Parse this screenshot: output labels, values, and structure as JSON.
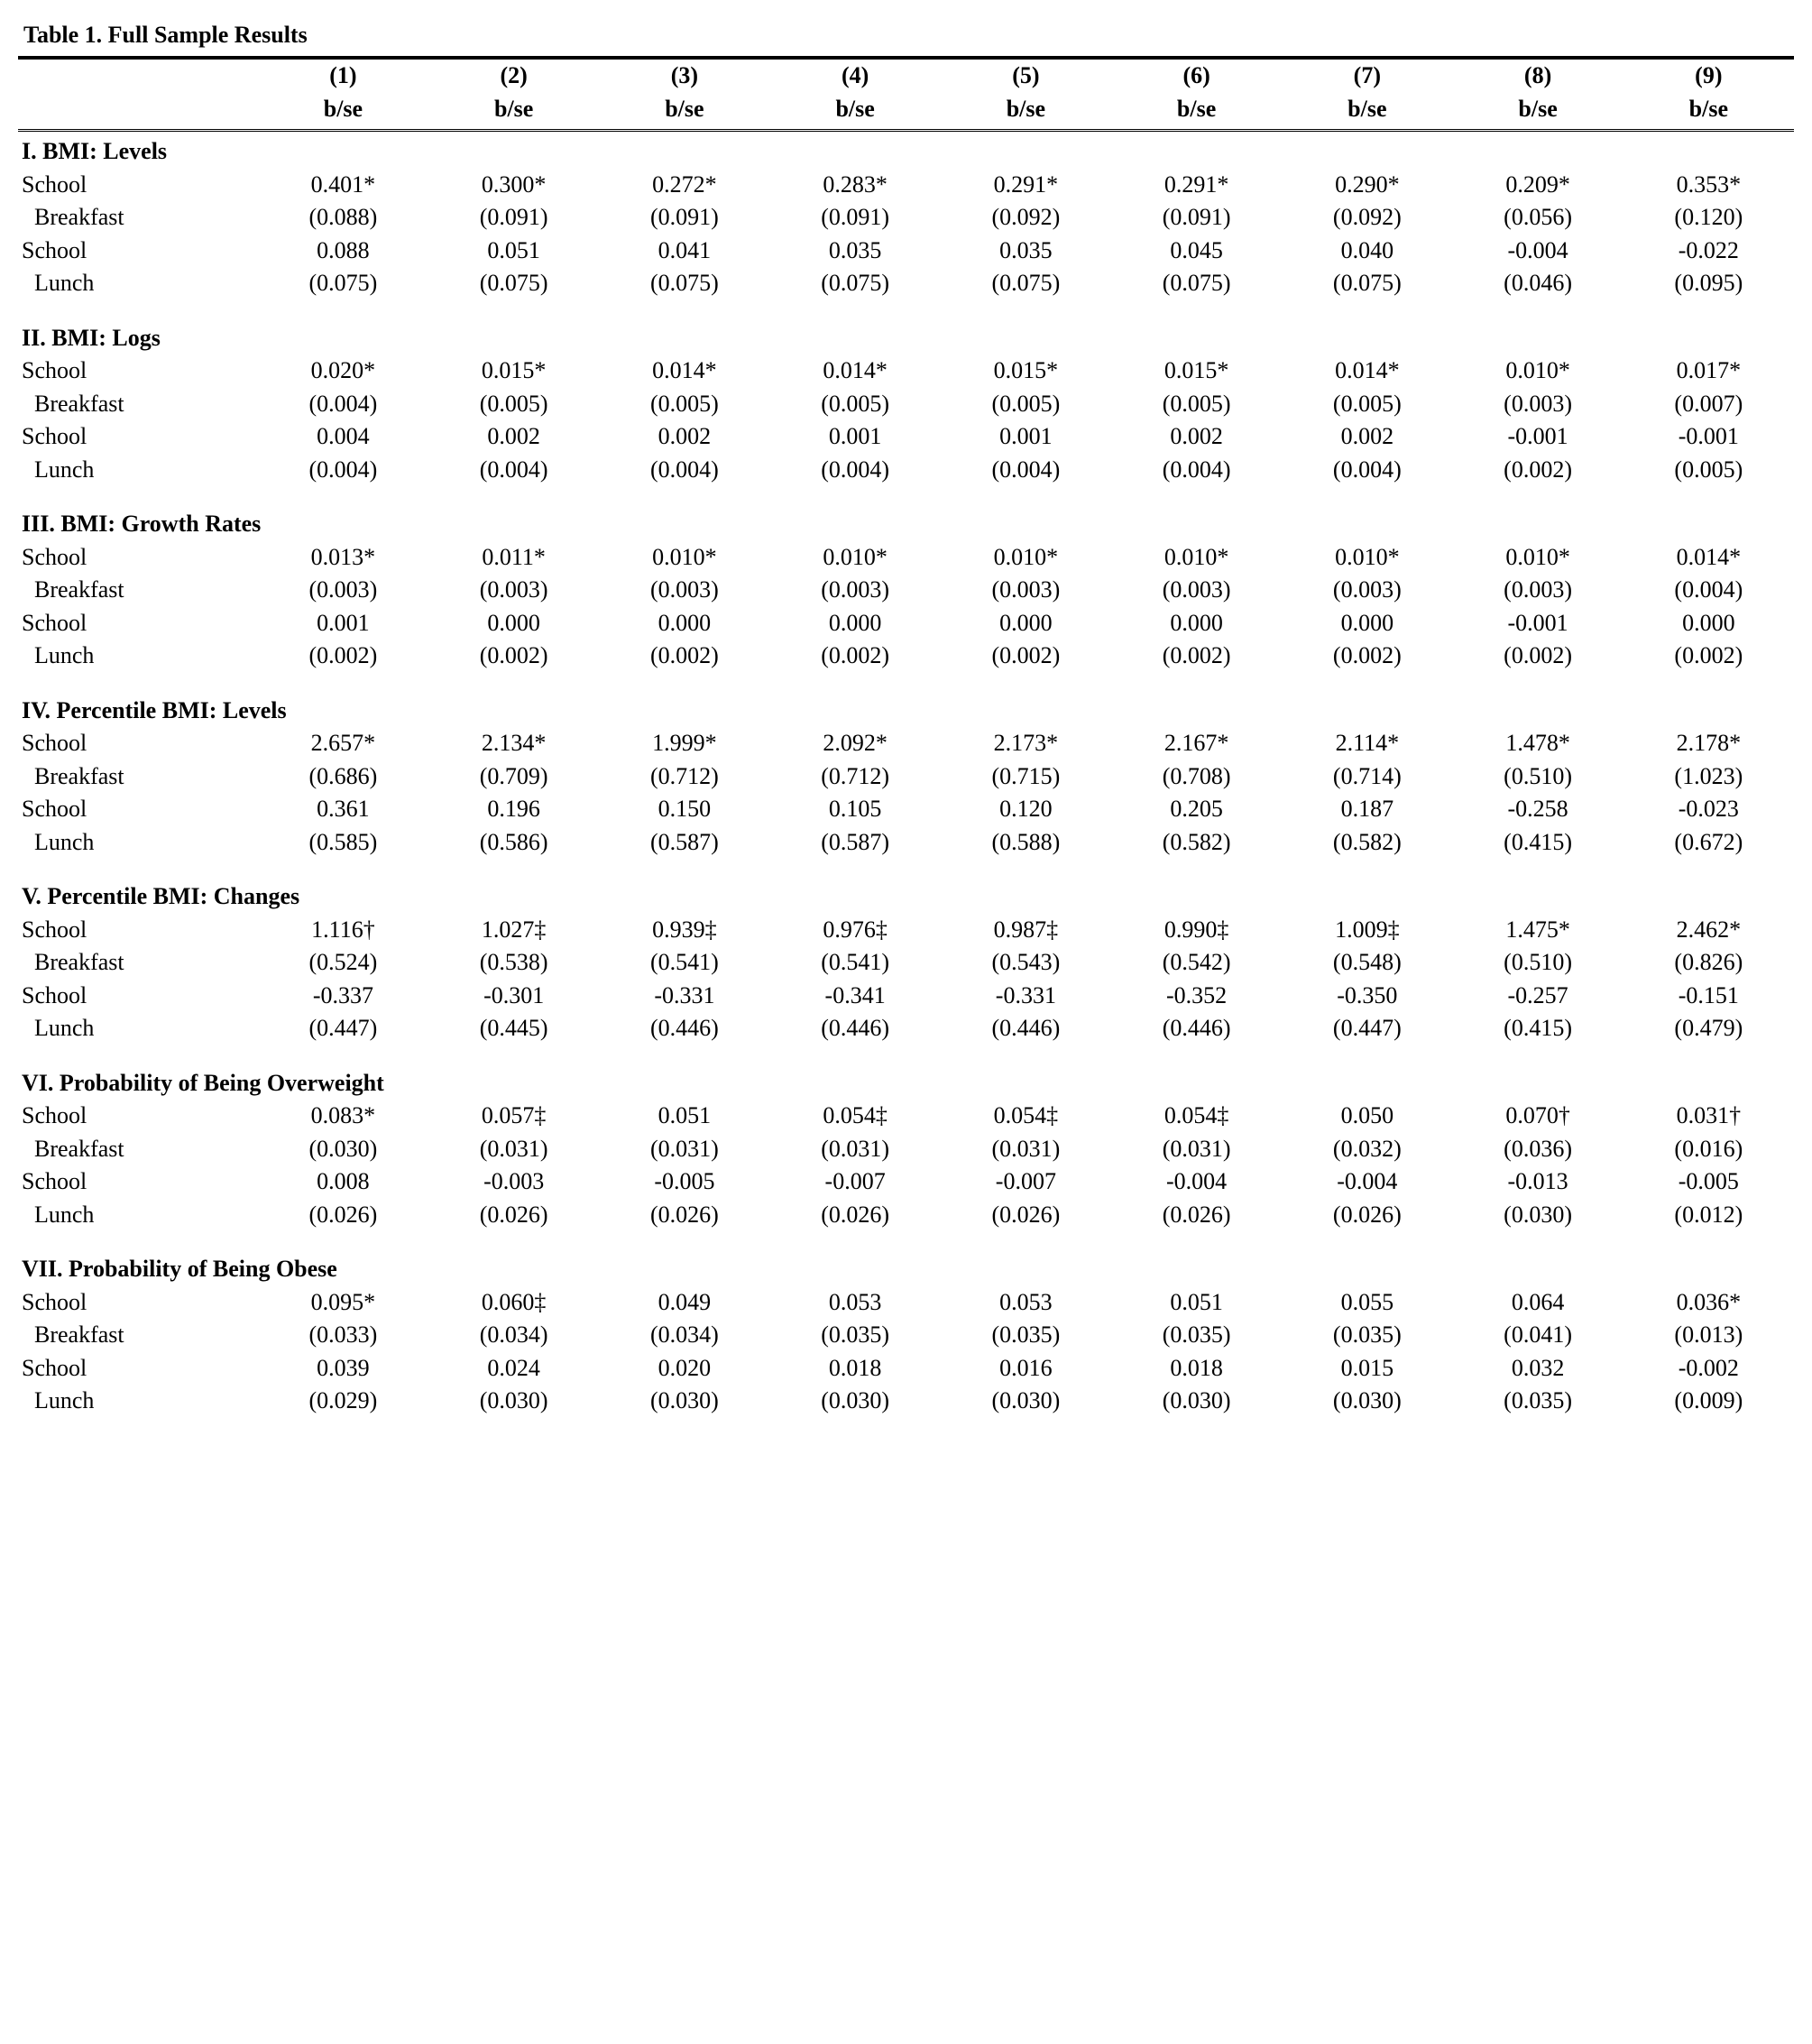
{
  "title": "Table 1.  Full Sample Results",
  "columns": [
    "(1)",
    "(2)",
    "(3)",
    "(4)",
    "(5)",
    "(6)",
    "(7)",
    "(8)",
    "(9)"
  ],
  "col_sub": "b/se",
  "row_labels": {
    "school": "School",
    "breakfast": " Breakfast",
    "lunch": " Lunch"
  },
  "panels": [
    {
      "heading": "I.  BMI: Levels",
      "breakfast": {
        "b": [
          "0.401*",
          "0.300*",
          "0.272*",
          "0.283*",
          "0.291*",
          "0.291*",
          "0.290*",
          "0.209*",
          "0.353*"
        ],
        "se": [
          "(0.088)",
          "(0.091)",
          "(0.091)",
          "(0.091)",
          "(0.092)",
          "(0.091)",
          "(0.092)",
          "(0.056)",
          "(0.120)"
        ]
      },
      "lunch": {
        "b": [
          "0.088",
          "0.051",
          "0.041",
          "0.035",
          "0.035",
          "0.045",
          "0.040",
          "-0.004",
          "-0.022"
        ],
        "se": [
          "(0.075)",
          "(0.075)",
          "(0.075)",
          "(0.075)",
          "(0.075)",
          "(0.075)",
          "(0.075)",
          "(0.046)",
          "(0.095)"
        ]
      }
    },
    {
      "heading": "II.  BMI: Logs",
      "breakfast": {
        "b": [
          "0.020*",
          "0.015*",
          "0.014*",
          "0.014*",
          "0.015*",
          "0.015*",
          "0.014*",
          "0.010*",
          "0.017*"
        ],
        "se": [
          "(0.004)",
          "(0.005)",
          "(0.005)",
          "(0.005)",
          "(0.005)",
          "(0.005)",
          "(0.005)",
          "(0.003)",
          "(0.007)"
        ]
      },
      "lunch": {
        "b": [
          "0.004",
          "0.002",
          "0.002",
          "0.001",
          "0.001",
          "0.002",
          "0.002",
          "-0.001",
          "-0.001"
        ],
        "se": [
          "(0.004)",
          "(0.004)",
          "(0.004)",
          "(0.004)",
          "(0.004)",
          "(0.004)",
          "(0.004)",
          "(0.002)",
          "(0.005)"
        ]
      }
    },
    {
      "heading": "III.  BMI: Growth Rates",
      "breakfast": {
        "b": [
          "0.013*",
          "0.011*",
          "0.010*",
          "0.010*",
          "0.010*",
          "0.010*",
          "0.010*",
          "0.010*",
          "0.014*"
        ],
        "se": [
          "(0.003)",
          "(0.003)",
          "(0.003)",
          "(0.003)",
          "(0.003)",
          "(0.003)",
          "(0.003)",
          "(0.003)",
          "(0.004)"
        ]
      },
      "lunch": {
        "b": [
          "0.001",
          "0.000",
          "0.000",
          "0.000",
          "0.000",
          "0.000",
          "0.000",
          "-0.001",
          "0.000"
        ],
        "se": [
          "(0.002)",
          "(0.002)",
          "(0.002)",
          "(0.002)",
          "(0.002)",
          "(0.002)",
          "(0.002)",
          "(0.002)",
          "(0.002)"
        ]
      }
    },
    {
      "heading": "IV.  Percentile BMI: Levels",
      "breakfast": {
        "b": [
          "2.657*",
          "2.134*",
          "1.999*",
          "2.092*",
          "2.173*",
          "2.167*",
          "2.114*",
          "1.478*",
          "2.178*"
        ],
        "se": [
          "(0.686)",
          "(0.709)",
          "(0.712)",
          "(0.712)",
          "(0.715)",
          "(0.708)",
          "(0.714)",
          "(0.510)",
          "(1.023)"
        ]
      },
      "lunch": {
        "b": [
          "0.361",
          "0.196",
          "0.150",
          "0.105",
          "0.120",
          "0.205",
          "0.187",
          "-0.258",
          "-0.023"
        ],
        "se": [
          "(0.585)",
          "(0.586)",
          "(0.587)",
          "(0.587)",
          "(0.588)",
          "(0.582)",
          "(0.582)",
          "(0.415)",
          "(0.672)"
        ]
      }
    },
    {
      "heading": "V.  Percentile BMI: Changes",
      "breakfast": {
        "b": [
          "1.116†",
          "1.027‡",
          "0.939‡",
          "0.976‡",
          "0.987‡",
          "0.990‡",
          "1.009‡",
          "1.475*",
          "2.462*"
        ],
        "se": [
          "(0.524)",
          "(0.538)",
          "(0.541)",
          "(0.541)",
          "(0.543)",
          "(0.542)",
          "(0.548)",
          "(0.510)",
          "(0.826)"
        ]
      },
      "lunch": {
        "b": [
          "-0.337",
          "-0.301",
          "-0.331",
          "-0.341",
          "-0.331",
          "-0.352",
          "-0.350",
          "-0.257",
          "-0.151"
        ],
        "se": [
          "(0.447)",
          "(0.445)",
          "(0.446)",
          "(0.446)",
          "(0.446)",
          "(0.446)",
          "(0.447)",
          "(0.415)",
          "(0.479)"
        ]
      }
    },
    {
      "heading": "VI.  Probability of Being Overweight",
      "breakfast": {
        "b": [
          "0.083*",
          "0.057‡",
          "0.051",
          "0.054‡",
          "0.054‡",
          "0.054‡",
          "0.050",
          "0.070†",
          "0.031†"
        ],
        "se": [
          "(0.030)",
          "(0.031)",
          "(0.031)",
          "(0.031)",
          "(0.031)",
          "(0.031)",
          "(0.032)",
          "(0.036)",
          "(0.016)"
        ]
      },
      "lunch": {
        "b": [
          "0.008",
          "-0.003",
          "-0.005",
          "-0.007",
          "-0.007",
          "-0.004",
          "-0.004",
          "-0.013",
          "-0.005"
        ],
        "se": [
          "(0.026)",
          "(0.026)",
          "(0.026)",
          "(0.026)",
          "(0.026)",
          "(0.026)",
          "(0.026)",
          "(0.030)",
          "(0.012)"
        ]
      }
    },
    {
      "heading": "VII.  Probability of Being Obese",
      "breakfast": {
        "b": [
          "0.095*",
          "0.060‡",
          "0.049",
          "0.053",
          "0.053",
          "0.051",
          "0.055",
          "0.064",
          "0.036*"
        ],
        "se": [
          "(0.033)",
          "(0.034)",
          "(0.034)",
          "(0.035)",
          "(0.035)",
          "(0.035)",
          "(0.035)",
          "(0.041)",
          "(0.013)"
        ]
      },
      "lunch": {
        "b": [
          "0.039",
          "0.024",
          "0.020",
          "0.018",
          "0.016",
          "0.018",
          "0.015",
          "0.032",
          "-0.002"
        ],
        "se": [
          "(0.029)",
          "(0.030)",
          "(0.030)",
          "(0.030)",
          "(0.030)",
          "(0.030)",
          "(0.030)",
          "(0.035)",
          "(0.009)"
        ]
      }
    }
  ]
}
